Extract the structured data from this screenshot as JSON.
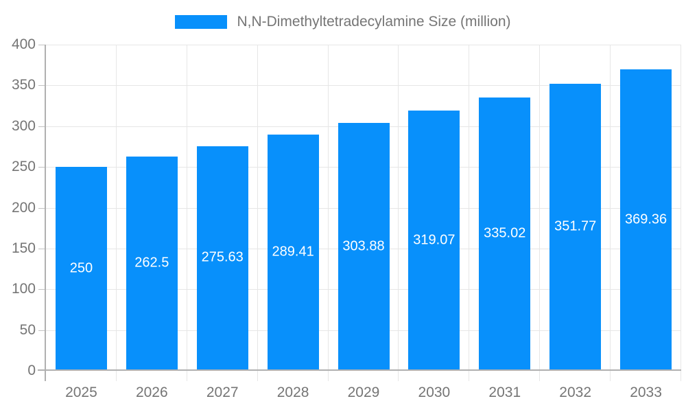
{
  "colors": {
    "bar": "#0890FB",
    "axis_line": "#b0b0b0",
    "gridline": "#e6e6e6",
    "tick_text": "#757575",
    "bar_label_text": "#ffffff"
  },
  "chart_data": {
    "type": "bar",
    "title": "",
    "legend": "N,N-Dimethyltetradecylamine Size (million)",
    "legend_position": "top",
    "categories": [
      "2025",
      "2026",
      "2027",
      "2028",
      "2029",
      "2030",
      "2031",
      "2032",
      "2033"
    ],
    "values": [
      250,
      262.5,
      275.63,
      289.41,
      303.88,
      319.07,
      335.02,
      351.77,
      369.36
    ],
    "value_labels": [
      "250",
      "262.5",
      "275.63",
      "289.41",
      "303.88",
      "319.07",
      "335.02",
      "351.77",
      "369.36"
    ],
    "xlabel": "",
    "ylabel": "",
    "ylim": [
      0,
      400
    ],
    "yticks": [
      0,
      50,
      100,
      150,
      200,
      250,
      300,
      350,
      400
    ],
    "grid": true
  }
}
